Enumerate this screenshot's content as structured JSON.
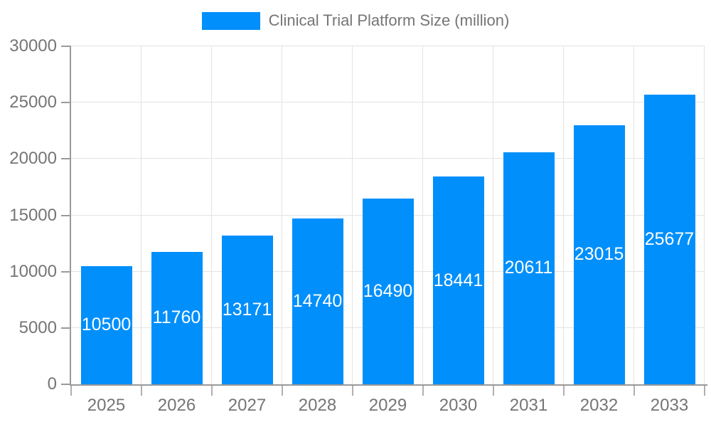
{
  "chart_data": {
    "type": "bar",
    "title": "",
    "legend_label": "Clinical Trial Platform Size (million)",
    "legend_position": "top",
    "categories": [
      "2025",
      "2026",
      "2027",
      "2028",
      "2029",
      "2030",
      "2031",
      "2032",
      "2033"
    ],
    "values": [
      10500,
      11760,
      13171,
      14740,
      16490,
      18441,
      20611,
      23015,
      25677
    ],
    "xlabel": "",
    "ylabel": "",
    "ylim": [
      0,
      30000
    ],
    "yticks": [
      0,
      5000,
      10000,
      15000,
      20000,
      25000,
      30000
    ],
    "grid": true,
    "colors": {
      "bar": "#008FFB",
      "bar_value_text": "#ffffff",
      "axis_text": "#757575",
      "gridline": "#e3e3e3",
      "axis_line": "#999999"
    }
  }
}
